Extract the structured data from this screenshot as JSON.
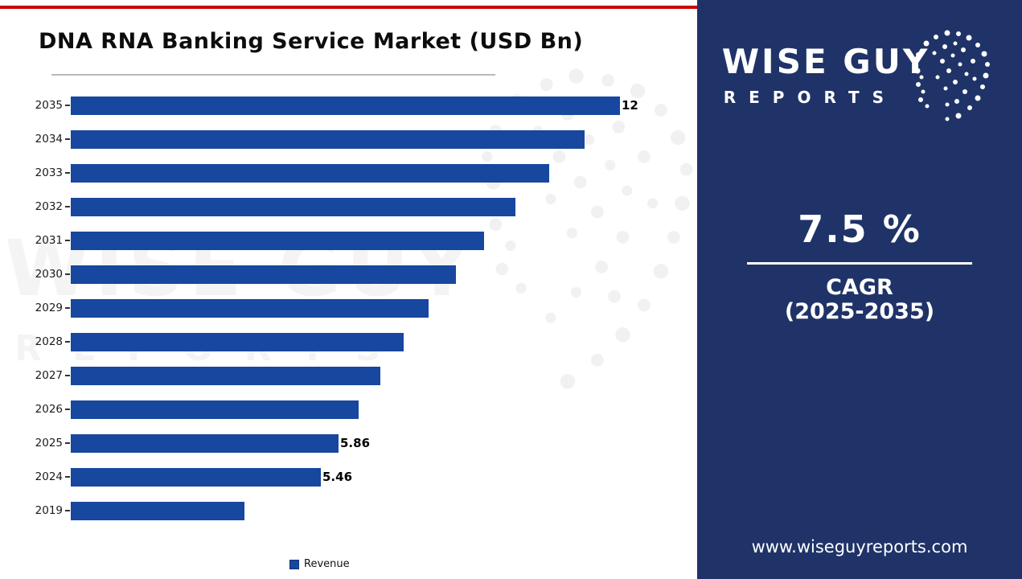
{
  "title": "DNA RNA Banking Service Market (USD Bn)",
  "legend": {
    "label": "Revenue"
  },
  "watermark": {
    "line1": "WISE GUY",
    "line2": "REPORTS"
  },
  "brand": {
    "logo_line1": "WISE GUY",
    "logo_line2": "REPORTS",
    "cagr_value": "7.5 %",
    "cagr_label_line1": "CAGR",
    "cagr_label_line2": "(2025-2035)",
    "website": "www.wiseguyreports.com"
  },
  "colors": {
    "bar": "#17479e",
    "panel": "#1f3368",
    "accent_red": "#cc0000",
    "legend_swatch": "#17479e"
  },
  "chart_data": {
    "type": "bar",
    "orientation": "horizontal",
    "title": "DNA RNA Banking Service Market (USD Bn)",
    "series_name": "Revenue",
    "categories": [
      "2035",
      "2034",
      "2033",
      "2032",
      "2031",
      "2030",
      "2029",
      "2028",
      "2027",
      "2026",
      "2025",
      "2024",
      "2019"
    ],
    "values": [
      12,
      11.23,
      10.45,
      9.72,
      9.04,
      8.41,
      7.82,
      7.28,
      6.77,
      6.3,
      5.86,
      5.46,
      3.8
    ],
    "data_labels": [
      "12",
      "",
      "",
      "",
      "",
      "",
      "",
      "",
      "",
      "",
      "5.86",
      "5.46",
      ""
    ],
    "xlim": [
      0,
      12.8
    ],
    "grid": false,
    "legend_position": "bottom",
    "annotation": "CAGR 7.5 % (2025-2035)"
  }
}
